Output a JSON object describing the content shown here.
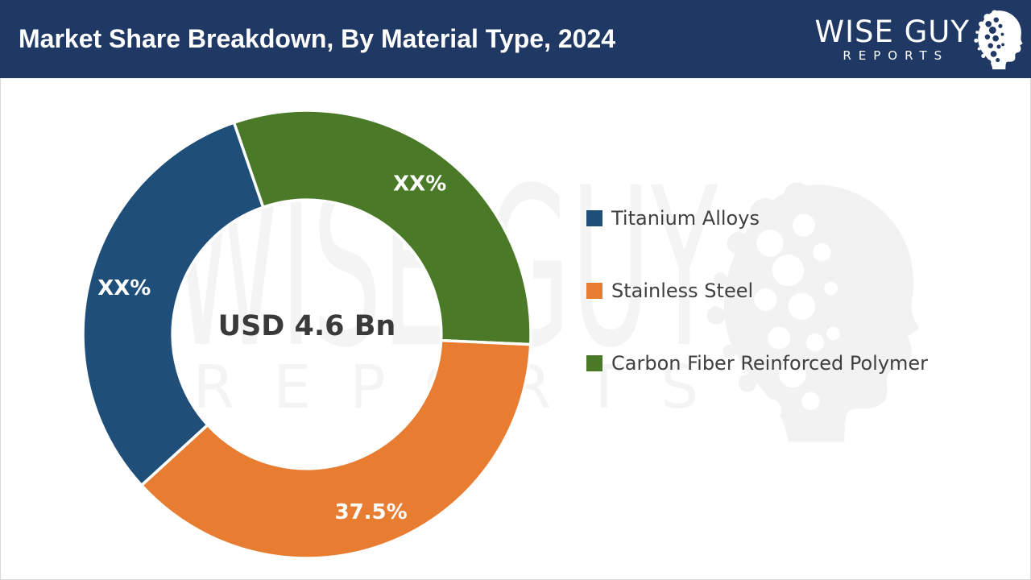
{
  "header": {
    "title": "Market Share Breakdown, By Material Type, 2024",
    "background": "#1f3864",
    "logo": {
      "line1": "WISE GUY",
      "line2": "REPORTS"
    }
  },
  "watermark": {
    "line1": "WISE GUY",
    "line2": "REPORTS"
  },
  "colors": {
    "header_bg": "#1f3864",
    "legend_text": "#3f3f3f",
    "center_text": "#3a3a3a",
    "watermark": "#f2f2f2",
    "border": "#d9d9d9"
  },
  "chart_data": {
    "type": "pie",
    "subtype": "donut",
    "title": "Market Share Breakdown, By Material Type, 2024",
    "center_label": "USD 4.6 Bn",
    "legend_position": "right",
    "start_angle_deg": -19,
    "donut_hole_ratio": 0.6,
    "draw_order": [
      2,
      1,
      0
    ],
    "segments": [
      {
        "name": "Titanium Alloys",
        "value": 31.5,
        "label": "XX%",
        "color": "#1f4e79"
      },
      {
        "name": "Stainless Steel",
        "value": 37.5,
        "label": "37.5%",
        "color": "#e87d31"
      },
      {
        "name": "Carbon Fiber Reinforced Polymer",
        "value": 31.0,
        "label": "XX%",
        "color": "#4a7a28"
      }
    ]
  }
}
